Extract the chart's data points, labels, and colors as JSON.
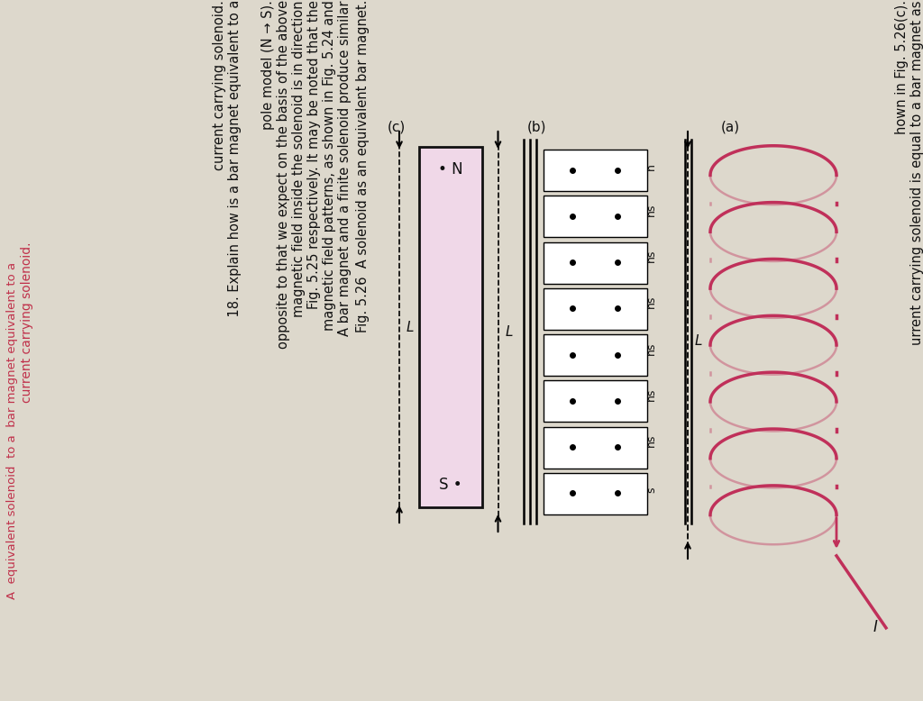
{
  "bg_color": "#ddd8cc",
  "coil_color": "#c0305a",
  "bar_fill": "#f0d8e8",
  "bar_edge": "#111111",
  "text_black": "#111111",
  "text_red": "#c0304a",
  "label_I": "I",
  "label_L": "L",
  "label_a": "(a)",
  "label_b": "(b)",
  "label_c": "(c)",
  "row_labels": [
    "s",
    "ns",
    "ns",
    "ns",
    "ns",
    "ns",
    "ns",
    "n"
  ],
  "label_S": "S",
  "label_N": "N",
  "top_line1": "urrent carrying solenoid is equal to a bar magnet as",
  "top_line2": "hown in Fig. 5.26(c).",
  "fig_label": "Fig. 5.26",
  "fig_caption": "A solenoid as an equivalent bar magnet.",
  "body_lines": [
    "A bar magnet and a finite solenoid produce similar",
    "magnetic field patterns, as shown in Fig. 5.24 and",
    "Fig. 5.25 respectively. It may be noted that the",
    "magnetic field inside the solenoid is in direction",
    "opposite to that we expect on the basis of the above",
    "pole model (N → S)."
  ],
  "ex_line1": "    18. Explain how is a bar magnet equivalent to a",
  "ex_line2": "current carrying solenoid.",
  "margin_text1": "current carrying solenoid.",
  "margin_text2": "A  equivalent solenoid  to a  bar magnet equivalent to a"
}
